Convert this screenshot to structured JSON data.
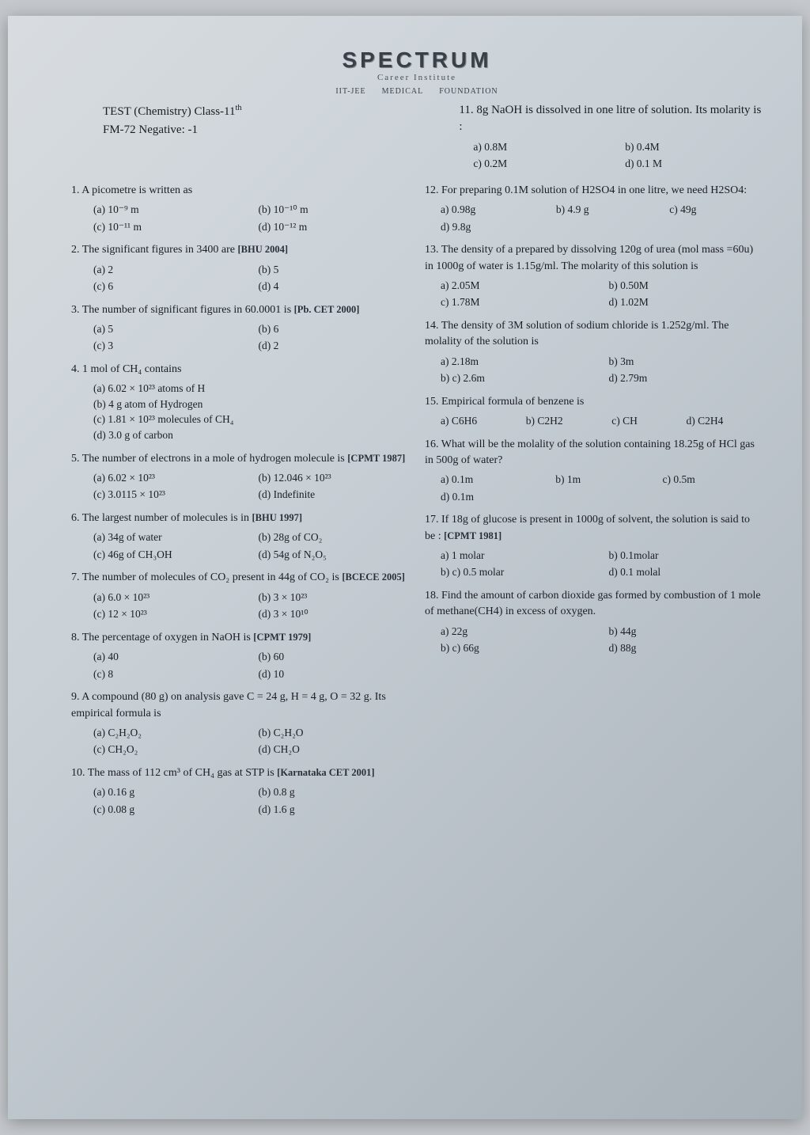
{
  "header": {
    "brand": "SPECTRUM",
    "tagline": "Career Institute",
    "banner_left": "IIT-JEE",
    "banner_center": "MEDICAL",
    "banner_right": "FOUNDATION",
    "test_line1": "TEST (Chemistry)   Class-11",
    "test_line1_sup": "th",
    "test_line2": "FM-72  Negative: -1"
  },
  "left": [
    {
      "n": "1.",
      "text": "A picometre is written as",
      "opts": [
        "(a) 10⁻⁹ m",
        "(b) 10⁻¹⁰ m",
        "(c) 10⁻¹¹ m",
        "(d) 10⁻¹² m"
      ]
    },
    {
      "n": "2.",
      "text": "The significant figures in 3400 are",
      "tag": "[BHU 2004]",
      "opts": [
        "(a) 2",
        "(b) 5",
        "(c) 6",
        "(d) 4"
      ]
    },
    {
      "n": "3.",
      "text": "The number of significant figures in 60.0001 is",
      "tag": "[Pb. CET 2000]",
      "opts": [
        "(a) 5",
        "(b) 6",
        "(c) 3",
        "(d) 2"
      ]
    },
    {
      "n": "4.",
      "text": "1 mol of CH₄ contains",
      "opts_vert": [
        "(a) 6.02 × 10²³ atoms of H",
        "(b) 4 g atom of Hydrogen",
        "(c) 1.81 × 10²³ molecules of CH₄",
        "(d) 3.0 g of carbon"
      ]
    },
    {
      "n": "5.",
      "text": "The number of electrons in a mole of hydrogen molecule is",
      "tag": "[CPMT 1987]",
      "opts": [
        "(a) 6.02 × 10²³",
        "(b) 12.046 × 10²³",
        "(c) 3.0115 × 10²³",
        "(d) Indefinite"
      ]
    },
    {
      "n": "6.",
      "text": "The largest number of molecules is in",
      "tag": "[BHU 1997]",
      "opts": [
        "(a) 34g of water",
        "(b) 28g of CO₂",
        "(c) 46g of CH₃OH",
        "(d) 54g of N₂O₅"
      ]
    },
    {
      "n": "7.",
      "text": "The number of molecules of CO₂ present in 44g of CO₂ is",
      "tag": "[BCECE 2005]",
      "opts": [
        "(a) 6.0 × 10²³",
        "(b) 3 × 10²³",
        "(c) 12 × 10²³",
        "(d) 3 × 10¹⁰"
      ]
    },
    {
      "n": "8.",
      "text": "The percentage of oxygen in NaOH is",
      "tag": "[CPMT 1979]",
      "opts": [
        "(a) 40",
        "(b) 60",
        "(c) 8",
        "(d) 10"
      ]
    },
    {
      "n": "9.",
      "text": "A compound (80 g) on analysis gave C = 24 g, H = 4 g, O = 32 g. Its empirical formula is",
      "opts": [
        "(a) C₂H₂O₂",
        "(b) C₂H₂O",
        "(c) CH₂O₂",
        "(d) CH₂O"
      ]
    },
    {
      "n": "10.",
      "text": "The mass of 112 cm³ of CH₄ gas at STP is",
      "tag": "[Karnataka CET 2001]",
      "opts": [
        "(a) 0.16 g",
        "(b) 0.8 g",
        "(c) 0.08 g",
        "(d) 1.6 g"
      ]
    }
  ],
  "right": [
    {
      "n": "11.",
      "text": "8g NaOH is dissolved in one litre of solution. Its molarity is :",
      "opts": [
        "a) 0.8M",
        "b) 0.4M",
        "c) 0.2M",
        "d) 0.1 M"
      ]
    },
    {
      "n": "12.",
      "text": "For preparing 0.1M solution of H2SO4 in one litre, we need H2SO4:",
      "opts": [
        "a) 0.98g",
        "b) 4.9 g",
        "c) 49g",
        "d) 9.8g"
      ],
      "inline3": true
    },
    {
      "n": "13.",
      "text": "The density of a prepared by dissolving 120g of urea (mol mass =60u) in 1000g of water is 1.15g/ml. The molarity of this solution is",
      "opts": [
        "a) 2.05M",
        "b) 0.50M",
        "c) 1.78M",
        "d) 1.02M"
      ]
    },
    {
      "n": "14.",
      "text": "The density of 3M solution of sodium chloride is 1.252g/ml. The molality of the solution is",
      "opts": [
        "a) 2.18m",
        "b) 3m",
        "b)   c) 2.6m",
        "d) 2.79m"
      ]
    },
    {
      "n": "15.",
      "text": "Empirical formula of benzene is",
      "opts": [
        "a) C6H6",
        "b) C2H2",
        "c) CH",
        "d) C2H4"
      ],
      "inline4": true
    },
    {
      "n": "16.",
      "text": "What will be the molality of the solution containing 18.25g of HCl gas in 500g of water?",
      "opts": [
        "a) 0.1m",
        "b) 1m",
        "c) 0.5m",
        "d) 0.1m"
      ],
      "inline3b": true
    },
    {
      "n": "17.",
      "text": "If 18g of glucose is present in 1000g of solvent, the solution is said to be :",
      "tag": "[CPMT 1981]",
      "opts": [
        "a) 1 molar",
        "b) 0.1molar",
        "b)   c) 0.5 molar",
        "d) 0.1 molal"
      ]
    },
    {
      "n": "18.",
      "text": "Find the amount of carbon dioxide gas formed by combustion of 1 mole of methane(CH4) in excess of oxygen.",
      "opts": [
        "a) 22g",
        "b) 44g",
        "b)   c) 66g",
        "d) 88g"
      ]
    }
  ]
}
